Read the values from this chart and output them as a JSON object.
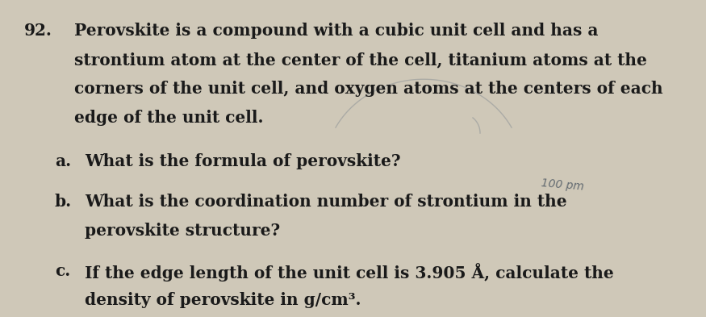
{
  "background_color": "#cfc8b8",
  "text_color": "#1a1a1a",
  "number": "92.",
  "main_text_lines": [
    "Perovskite is a compound with a cubic unit cell and has a",
    "strontium atom at the center of the cell, titanium atoms at the",
    "corners of the unit cell, and oxygen atoms at the centers of each",
    "edge of the unit cell."
  ],
  "sub_items": [
    {
      "label": "a.",
      "lines": [
        "What is the formula of perovskite?"
      ]
    },
    {
      "label": "b.",
      "lines": [
        "What is the coordination number of strontium in the",
        "perovskite structure?"
      ]
    },
    {
      "label": "c.",
      "lines": [
        "If the edge length of the unit cell is 3.905 Å, calculate the",
        "density of perovskite in g/cm³."
      ]
    }
  ],
  "handwriting_text": "100 pm",
  "main_fontsize": 14.5,
  "number_fontsize": 14.5,
  "font_family": "serif"
}
